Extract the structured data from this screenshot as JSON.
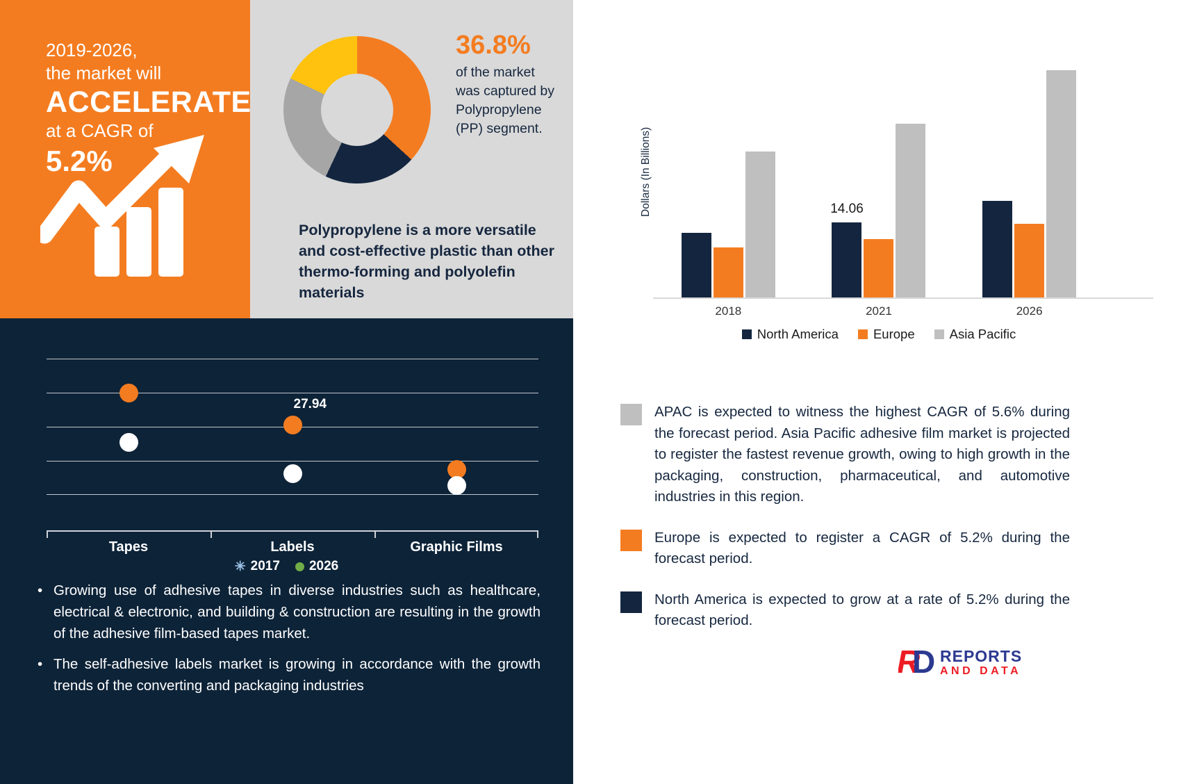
{
  "accelerate": {
    "period": "2019-2026,",
    "line2": "the market will",
    "title": "ACCELERATE",
    "line4": "at a CAGR of",
    "cagr": "5.2%"
  },
  "pp": {
    "stat": "36.8%",
    "stat_desc": "of the market was captured by Polypropylene (PP) segment.",
    "note": "Polypropylene is a more versatile and cost-effective plastic than other thermo-forming and polyolefin materials"
  },
  "chart_data": [
    {
      "id": "pp_donut",
      "type": "pie",
      "donut": true,
      "annotation": "36.8%",
      "segments": [
        {
          "label": "Polypropylene (PP)",
          "value": 36.8,
          "color": "#F47C20"
        },
        {
          "label": "",
          "value": 20.2,
          "color": "#14263F"
        },
        {
          "label": "",
          "value": 25.0,
          "color": "#A6A6A6"
        },
        {
          "label": "",
          "value": 18.0,
          "color": "#FFC20E"
        }
      ]
    },
    {
      "id": "regional_bar",
      "type": "bar",
      "title": "",
      "ylabel": "Dollars (In Billions)",
      "xlabel": "",
      "ylim": [
        0,
        48
      ],
      "grid": false,
      "legend_position": "bottom",
      "categories": [
        "2018",
        "2021",
        "2026"
      ],
      "series": [
        {
          "name": "North America",
          "color": "#14263F",
          "values": [
            12.0,
            14.06,
            18.0
          ]
        },
        {
          "name": "Europe",
          "color": "#F47C20",
          "values": [
            9.4,
            10.9,
            13.8
          ]
        },
        {
          "name": "Asia Pacific",
          "color": "#BFBFBF",
          "values": [
            27.2,
            32.4,
            42.4
          ]
        }
      ],
      "data_labels": [
        {
          "category": "2021",
          "series": "North America",
          "value": "14.06"
        }
      ]
    },
    {
      "id": "segment_dot",
      "type": "scatter",
      "ylim": [
        10,
        45
      ],
      "grid": true,
      "categories": [
        "Tapes",
        "Labels",
        "Graphic Films"
      ],
      "series": [
        {
          "name": "2026",
          "marker_color": "#F47C20",
          "values": [
            36.2,
            27.94,
            16.5
          ]
        },
        {
          "name": "2017",
          "marker_color": "#FFFFFF",
          "values": [
            23.5,
            15.4,
            12.5
          ]
        }
      ],
      "legend": [
        {
          "label": "2017",
          "marker": "asterisk",
          "color": "#9DC3E6"
        },
        {
          "label": "2026",
          "marker": "circle",
          "color": "#70AD47"
        }
      ],
      "data_labels": [
        {
          "category": "Labels",
          "series": "2026",
          "value": "27.94"
        }
      ]
    }
  ],
  "bottom_bullets": {
    "items": [
      {
        "text": "Growing use of adhesive tapes in diverse industries such as healthcare, electrical & electronic, and building & construction are resulting in the growth of the adhesive film-based tapes market."
      },
      {
        "text": "The self-adhesive labels market is growing in accordance with the growth trends of the converting and packaging industries"
      }
    ]
  },
  "takeaways": {
    "items": [
      {
        "color": "#BFBFBF",
        "text": "APAC is expected to witness the highest CAGR of 5.6% during the forecast period. Asia Pacific adhesive film market is projected to register the fastest revenue growth, owing to high growth in the packaging, construction, pharmaceutical, and automotive industries in this region."
      },
      {
        "color": "#F47C20",
        "text": "Europe is expected to register a CAGR of 5.2% during the forecast period."
      },
      {
        "color": "#14263F",
        "text": "North America is expected to grow at a rate of 5.2% during the forecast period."
      }
    ]
  },
  "logo": {
    "monogram_r": "R",
    "monogram_d": "D",
    "line1": "REPORTS",
    "line2": "AND DATA"
  }
}
